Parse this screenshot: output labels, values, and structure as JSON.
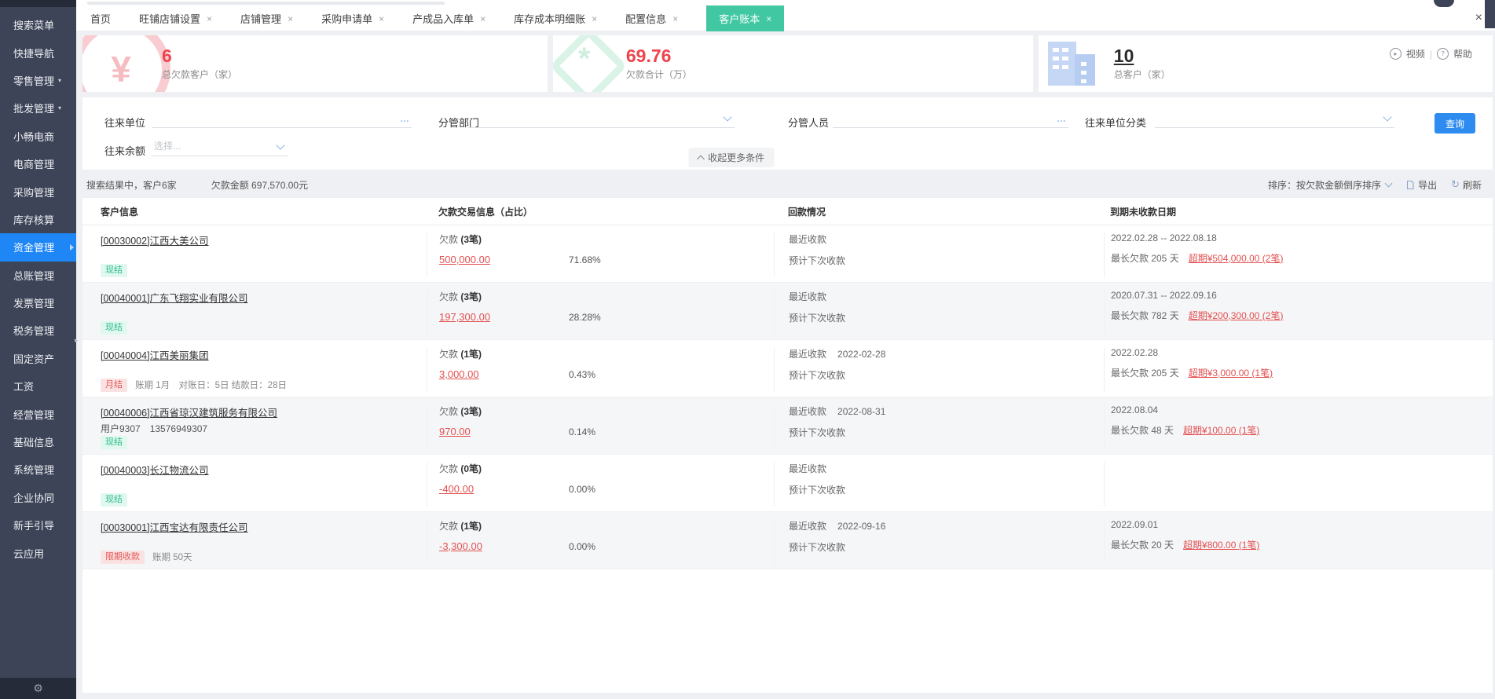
{
  "theme": {
    "sidebar_bg": "#3d4457",
    "active_blue": "#1f87f5",
    "tab_green": "#41c8a3",
    "button_blue": "#2e8cf0",
    "danger_red": "#e35050",
    "stat_red": "#f0444c"
  },
  "sidebar": {
    "items": [
      {
        "id": "search-menu",
        "label": "搜索菜单"
      },
      {
        "id": "quick-nav",
        "label": "快捷导航"
      },
      {
        "id": "retail-mgmt",
        "label": "零售管理",
        "arrow": true
      },
      {
        "id": "wholesale-mgmt",
        "label": "批发管理",
        "arrow": true
      },
      {
        "id": "xiaochang-ecom",
        "label": "小畅电商"
      },
      {
        "id": "ecom-mgmt",
        "label": "电商管理"
      },
      {
        "id": "purchase-mgmt",
        "label": "采购管理"
      },
      {
        "id": "inventory-accounting",
        "label": "库存核算"
      },
      {
        "id": "funds-mgmt",
        "label": "资金管理",
        "active": true
      },
      {
        "id": "general-ledger",
        "label": "总账管理"
      },
      {
        "id": "invoice-mgmt",
        "label": "发票管理"
      },
      {
        "id": "tax-mgmt",
        "label": "税务管理"
      },
      {
        "id": "fixed-assets",
        "label": "固定资产"
      },
      {
        "id": "payroll",
        "label": "工资"
      },
      {
        "id": "operation-mgmt",
        "label": "经营管理"
      },
      {
        "id": "base-info",
        "label": "基础信息"
      },
      {
        "id": "system-mgmt",
        "label": "系统管理"
      },
      {
        "id": "enterprise-collab",
        "label": "企业协同"
      },
      {
        "id": "newbie-guide",
        "label": "新手引导"
      },
      {
        "id": "cloud-apps",
        "label": "云应用"
      }
    ],
    "footer_icon": "⚙"
  },
  "tabbar": {
    "tabs": [
      {
        "id": "home",
        "label": "首页",
        "closable": false
      },
      {
        "id": "wangpu-shop-settings",
        "label": "旺铺店铺设置",
        "closable": true
      },
      {
        "id": "shop-mgmt",
        "label": "店铺管理",
        "closable": true
      },
      {
        "id": "purchase-request",
        "label": "采购申请单",
        "closable": true
      },
      {
        "id": "finished-goods-inbound",
        "label": "产成品入库单",
        "closable": true
      },
      {
        "id": "inventory-cost-detail",
        "label": "库存成本明细账",
        "closable": true
      },
      {
        "id": "config-info",
        "label": "配置信息",
        "closable": true
      },
      {
        "id": "customer-ledger",
        "label": "客户账本",
        "closable": true,
        "active": true
      }
    ],
    "close_all": "×"
  },
  "stats": {
    "cards": [
      {
        "value": "6",
        "label": "总欠款客户（家）",
        "icon": "yen-coin-icon"
      },
      {
        "value": "69.76",
        "label": "欠款合计（万）",
        "icon": "diamond-icon"
      },
      {
        "value": "10",
        "label": "总客户（家）",
        "icon": "buildings-icon"
      }
    ],
    "video": "视频",
    "help": "帮助"
  },
  "filters": {
    "unit_label": "往来单位",
    "dept_label": "分管部门",
    "person_label": "分管人员",
    "category_label": "往来单位分类",
    "balance_label": "往来余额",
    "balance_placeholder": "选择...",
    "search": "查询",
    "collapse": "收起更多条件"
  },
  "result_bar": {
    "summary": "搜索结果中，客户6家",
    "amount": "欠款金额 697,570.00元",
    "sort": "排序：按欠款金额倒序排序",
    "export": "导出",
    "refresh": "刷新"
  },
  "table": {
    "headers": [
      "客户信息",
      "欠款交易信息（占比）",
      "回款情况",
      "到期未收款日期"
    ],
    "labels": {
      "debt": "欠款",
      "recent": "最近收款",
      "next": "预计下次收款"
    },
    "rows": [
      {
        "name": "[00030002]江西大美公司",
        "sub": "",
        "tags": [
          {
            "text": "现结",
            "type": "green"
          }
        ],
        "tag_extra": "",
        "count": "(3笔)",
        "amount": "500,000.00",
        "percent": "71.68%",
        "recent_date": "",
        "range": "2022.02.28 -- 2022.08.18",
        "days": "最长欠款 205 天",
        "overdue": "超期¥504,000.00 (2笔)"
      },
      {
        "name": "[00040001]广东飞翔实业有限公司",
        "sub": "",
        "tags": [
          {
            "text": "现结",
            "type": "green"
          }
        ],
        "tag_extra": "",
        "count": "(3笔)",
        "amount": "197,300.00",
        "percent": "28.28%",
        "recent_date": "",
        "range": "2020.07.31 -- 2022.09.16",
        "days": "最长欠款 782 天",
        "overdue": "超期¥200,300.00 (2笔)"
      },
      {
        "name": "[00040004]江西美丽集团",
        "sub": "",
        "tags": [
          {
            "text": "月结",
            "type": "red"
          }
        ],
        "tag_extra": "账期 1月　对账日：5日 结款日：28日",
        "count": "(1笔)",
        "amount": "3,000.00",
        "percent": "0.43%",
        "recent_date": "2022-02-28",
        "range": "2022.02.28",
        "days": "最长欠款 205 天",
        "overdue": "超期¥3,000.00 (1笔)"
      },
      {
        "name": "[00040006]江西省琼汉建筑服务有限公司",
        "sub": "用户9307　13576949307",
        "tags": [
          {
            "text": "现结",
            "type": "green"
          }
        ],
        "tag_extra": "",
        "count": "(3笔)",
        "amount": "970.00",
        "percent": "0.14%",
        "recent_date": "2022-08-31",
        "range": "2022.08.04",
        "days": "最长欠款 48 天",
        "overdue": "超期¥100.00 (1笔)"
      },
      {
        "name": "[00040003]长江物流公司",
        "sub": "",
        "tags": [
          {
            "text": "现结",
            "type": "green"
          }
        ],
        "tag_extra": "",
        "count": "(0笔)",
        "amount": "-400.00",
        "percent": "0.00%",
        "recent_date": "",
        "range": "",
        "days": "",
        "overdue": ""
      },
      {
        "name": "[00030001]江西宝达有限责任公司",
        "sub": "",
        "tags": [
          {
            "text": "限期收款",
            "type": "red"
          }
        ],
        "tag_extra": "账期 50天",
        "count": "(1笔)",
        "amount": "-3,300.00",
        "percent": "0.00%",
        "recent_date": "2022-09-16",
        "range": "2022.09.01",
        "days": "最长欠款 20 天",
        "overdue": "超期¥800.00 (1笔)"
      }
    ]
  }
}
